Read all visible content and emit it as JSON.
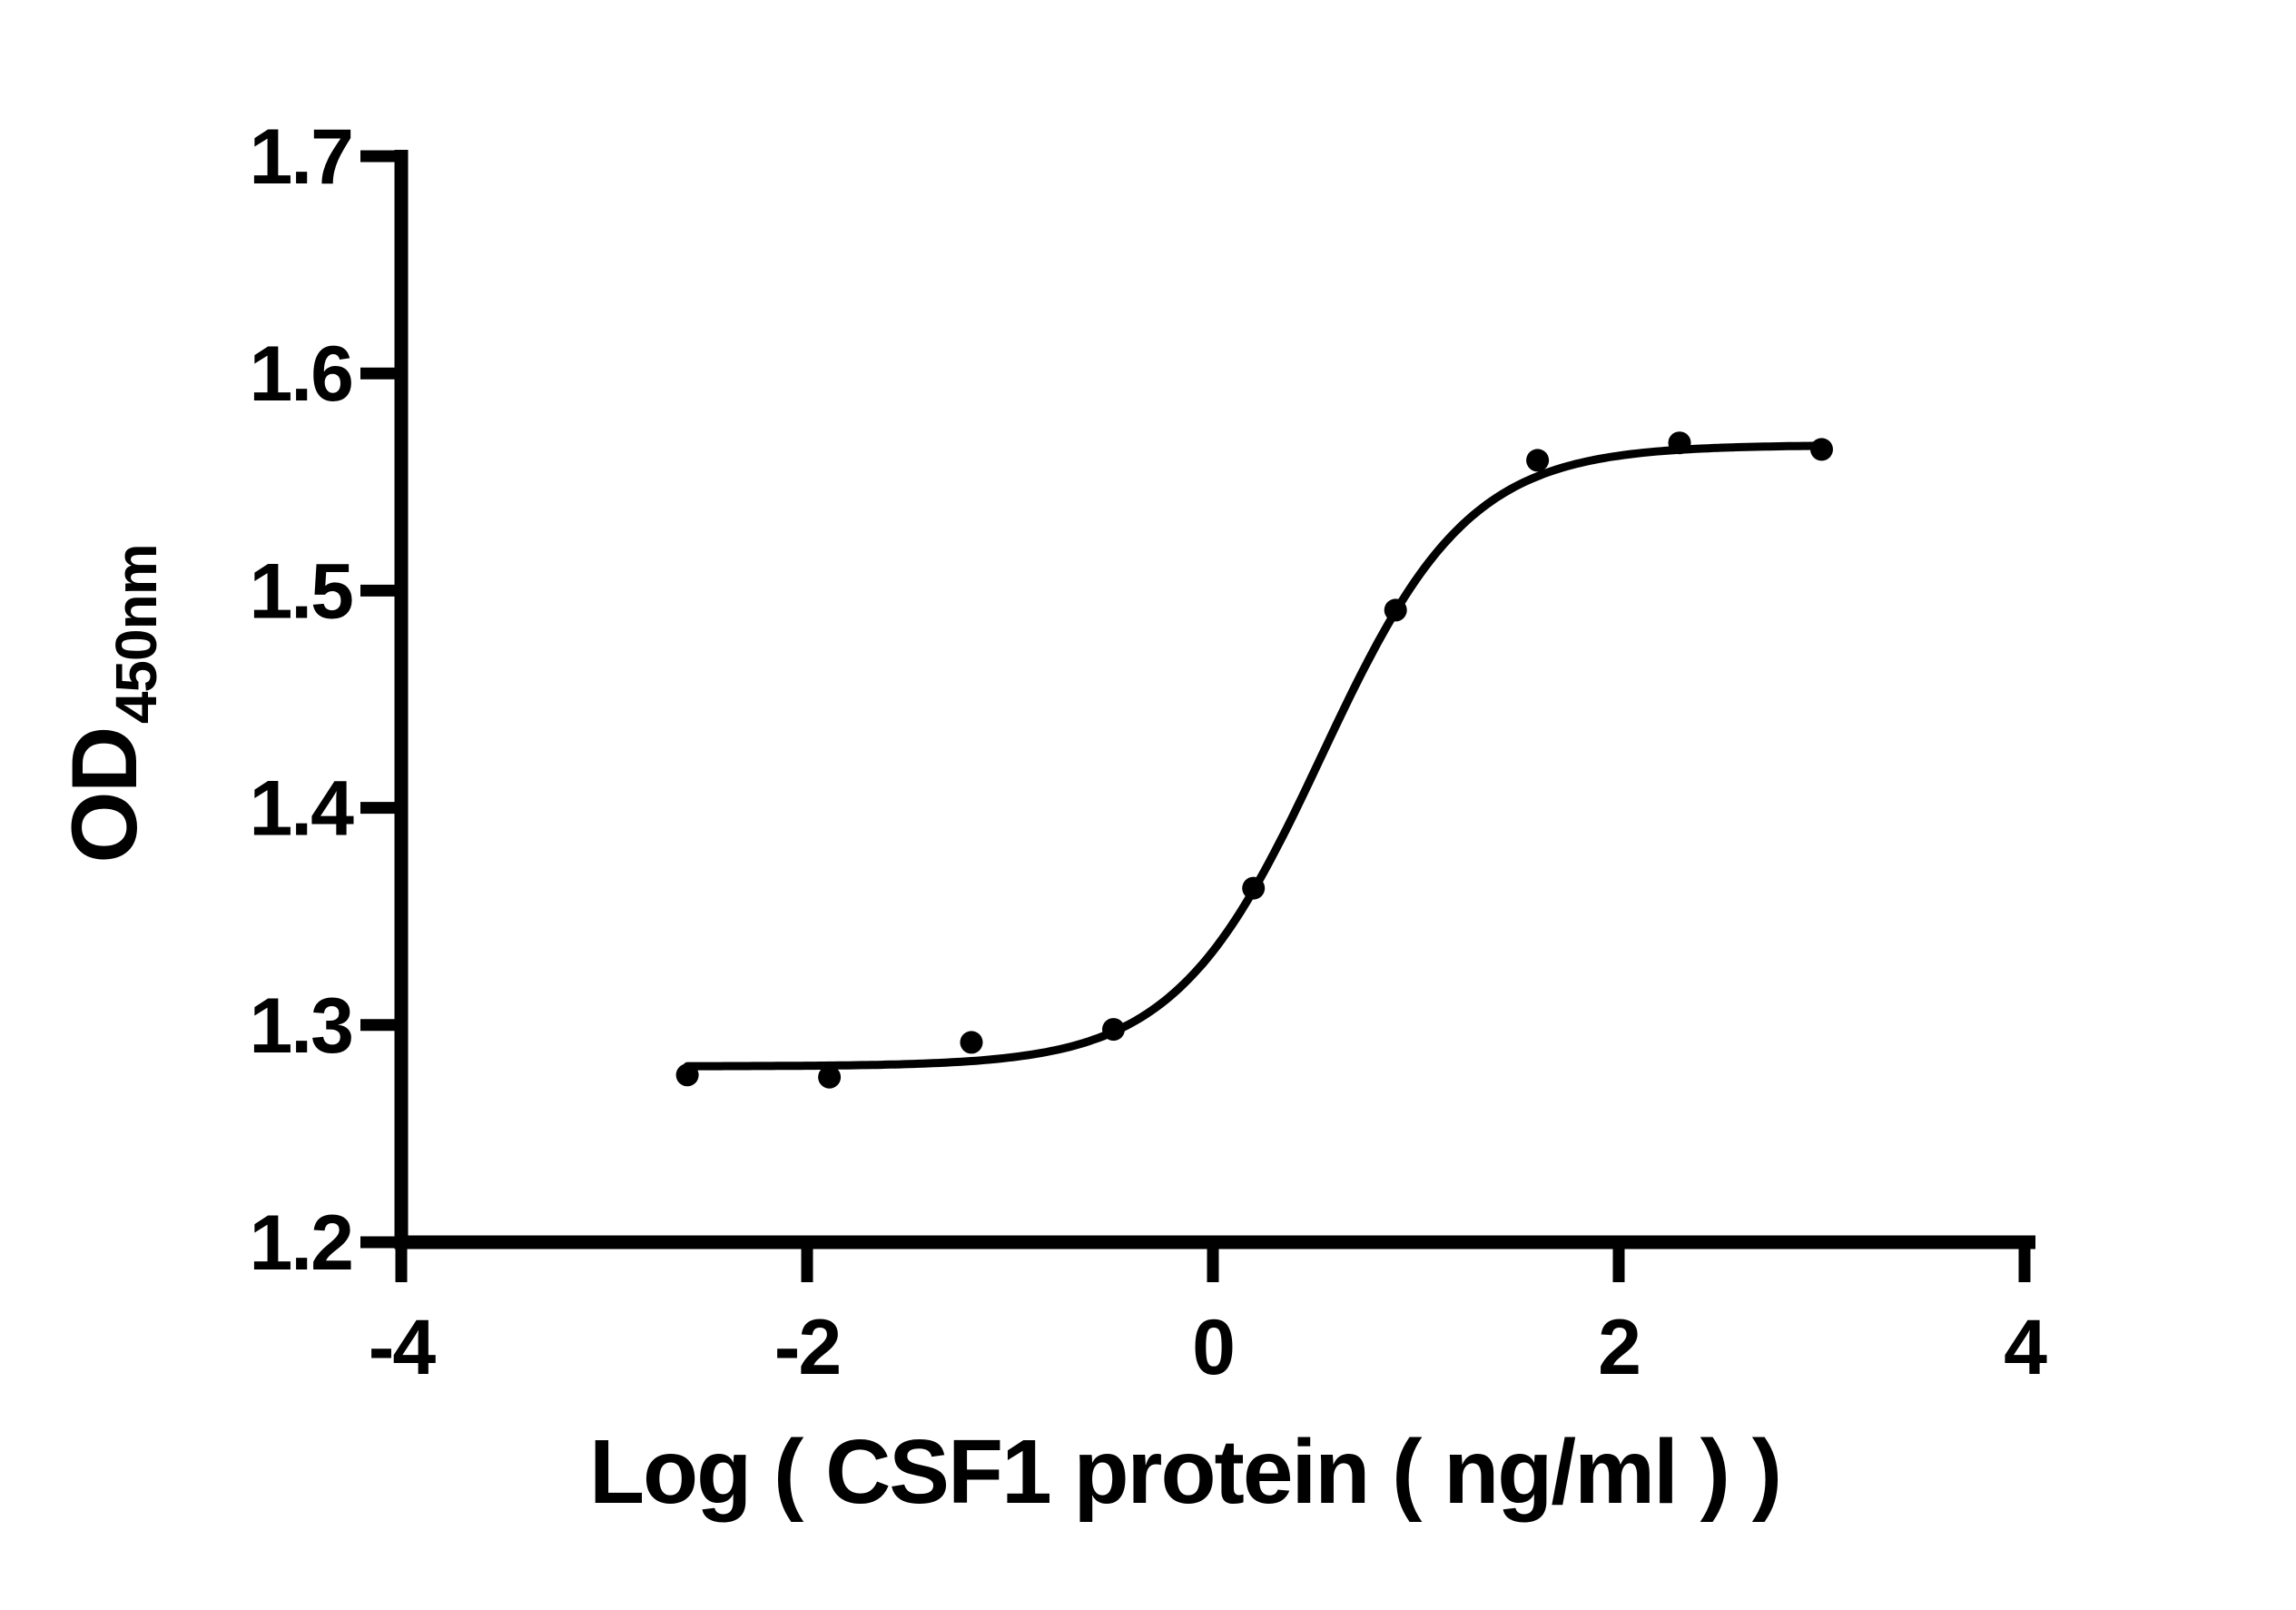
{
  "figure": {
    "background": "#ffffff",
    "ink_color": "#000000"
  },
  "y_axis": {
    "title_main": "OD",
    "title_sub": "450nm",
    "tick_labels": [
      "1.2",
      "1.3",
      "1.4",
      "1.5",
      "1.6",
      "1.7"
    ],
    "tick_values": [
      1.2,
      1.3,
      1.4,
      1.5,
      1.6,
      1.7
    ],
    "min": 1.2,
    "max": 1.7
  },
  "x_axis": {
    "title": "Log ( CSF1 protein ( ng/ml )  )",
    "tick_labels": [
      "-4",
      "-2",
      "0",
      "2",
      "4"
    ],
    "tick_values": [
      -4,
      -2,
      0,
      2,
      4
    ],
    "min": -4,
    "max": 4
  },
  "chart_data": {
    "type": "scatter",
    "title": "",
    "xlabel": "Log ( CSF1 protein ( ng/ml )  )",
    "ylabel": "OD 450nm",
    "xlim": [
      -4,
      4
    ],
    "ylim": [
      1.2,
      1.7
    ],
    "grid": false,
    "legend": false,
    "marker": {
      "shape": "circle",
      "color": "#000000",
      "radius_px": 12.5
    },
    "points": {
      "x_log": [
        -2.59,
        -1.89,
        -1.19,
        -0.49,
        0.2,
        0.9,
        1.6,
        2.3,
        3.0
      ],
      "od": [
        1.277,
        1.276,
        1.292,
        1.298,
        1.363,
        1.491,
        1.56,
        1.568,
        1.565
      ]
    },
    "fit_curve": {
      "model": "4PL",
      "bottom": 1.281,
      "top": 1.567,
      "log_ec50": 0.536,
      "hill": 1.2,
      "x_start": -2.59,
      "x_end": 3.0
    }
  }
}
